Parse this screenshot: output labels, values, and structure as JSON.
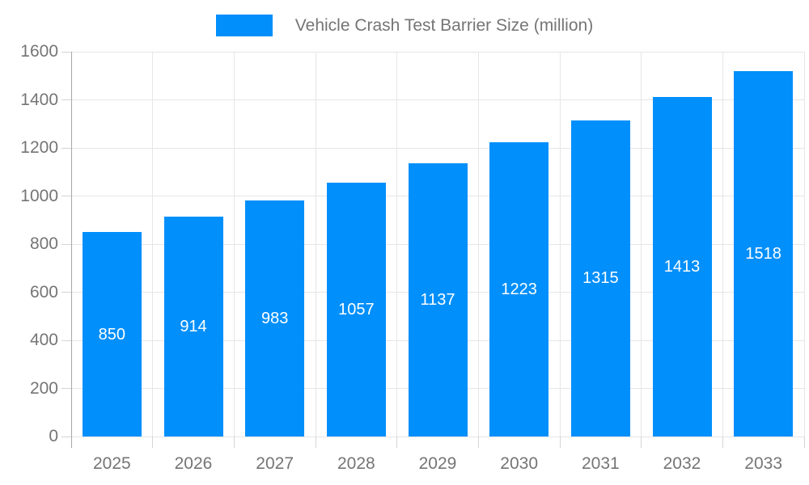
{
  "chart_data": {
    "type": "bar",
    "title": "Vehicle Crash Test Barrier Size (million)",
    "categories": [
      "2025",
      "2026",
      "2027",
      "2028",
      "2029",
      "2030",
      "2031",
      "2032",
      "2033"
    ],
    "values": [
      850,
      914,
      983,
      1057,
      1137,
      1223,
      1315,
      1413,
      1518
    ],
    "series_name": "Vehicle Crash Test Barrier Size (million)",
    "xlabel": "",
    "ylabel": "",
    "ylim": [
      0,
      1600
    ],
    "yticks": [
      0,
      200,
      400,
      600,
      800,
      1000,
      1200,
      1400,
      1600
    ],
    "legend_position": "top",
    "grid": true,
    "data_labels": "inside-center",
    "colors": {
      "bar": "#008FFB",
      "bar_label_text": "#ffffff",
      "axis_text": "#757575",
      "grid_line": "#e6e6e6",
      "tick_line": "#d4d4d4",
      "axis_line": "#a8a8a8",
      "background": "#ffffff"
    }
  }
}
